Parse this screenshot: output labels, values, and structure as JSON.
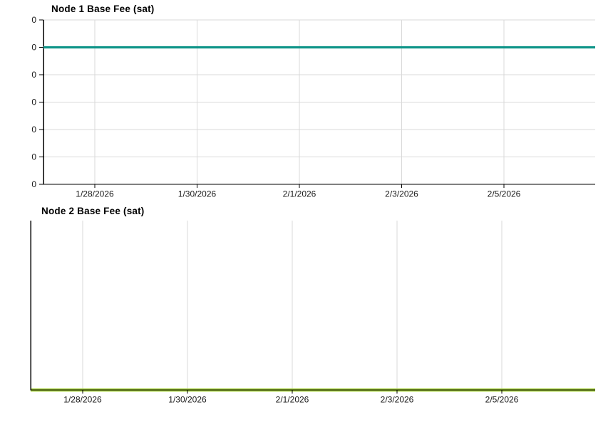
{
  "colors": {
    "axis": "#000000",
    "gridline": "#d9d9d9",
    "tick_text": "#1a1a1a",
    "title_text": "#000000",
    "node1_line": "#0e9488",
    "node2_line": "#a0cd32"
  },
  "chart_data": [
    {
      "type": "line",
      "title": "Node 1 Base Fee (sat)",
      "xlabel": "",
      "ylabel": "",
      "x_tick_labels": [
        "1/28/2026",
        "1/30/2026",
        "2/1/2026",
        "2/3/2026",
        "2/5/2026"
      ],
      "y_tick_labels": [
        "0",
        "0",
        "0",
        "0",
        "0",
        "0",
        "0"
      ],
      "grid": "horizontal-and-vertical",
      "legend": "none",
      "series": [
        {
          "name": "Node 1 Base Fee",
          "color": "#0e9488",
          "constant_value": 0,
          "note": "flat horizontal line at 0 sat spanning the entire date range, drawn at the second y-gridline from the top"
        }
      ]
    },
    {
      "type": "line",
      "title": "Node 2 Base Fee (sat)",
      "xlabel": "",
      "ylabel": "",
      "x_tick_labels": [
        "1/28/2026",
        "1/30/2026",
        "2/1/2026",
        "2/3/2026",
        "2/5/2026"
      ],
      "y_tick_labels": [],
      "grid": "vertical-only",
      "legend": "none",
      "series": [
        {
          "name": "Node 2 Base Fee",
          "color": "#a0cd32",
          "constant_value": 0,
          "note": "flat line at 0 lying directly on the x-axis"
        }
      ]
    }
  ]
}
